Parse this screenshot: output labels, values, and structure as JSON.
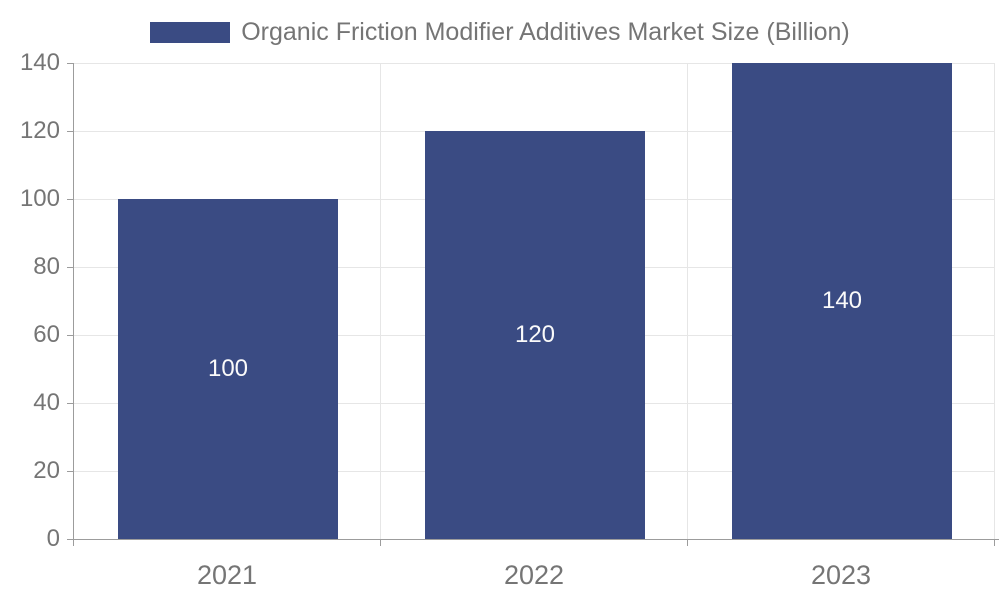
{
  "chart_data": {
    "type": "bar",
    "title": "Organic Friction Modifier Additives Market Size (Billion)",
    "categories": [
      "2021",
      "2022",
      "2023"
    ],
    "values": [
      100,
      120,
      140
    ],
    "xlabel": "",
    "ylabel": "",
    "ylim": [
      0,
      140
    ],
    "yticks": [
      0,
      20,
      40,
      60,
      80,
      100,
      120,
      140
    ],
    "grid": true,
    "legend_position": "top",
    "show_value_labels": true
  },
  "legend": {
    "items": [
      {
        "label": "Organic Friction Modifier Additives Market Size (Billion)",
        "color": "#3A4B83"
      }
    ]
  },
  "style": {
    "bar_color": "#3A4B83",
    "grid_color": "#E6E6E6",
    "axis_color": "#9C9C9C",
    "text_color": "#757575",
    "value_label_color": "#FAFAFA",
    "background": "#FFFFFF"
  }
}
